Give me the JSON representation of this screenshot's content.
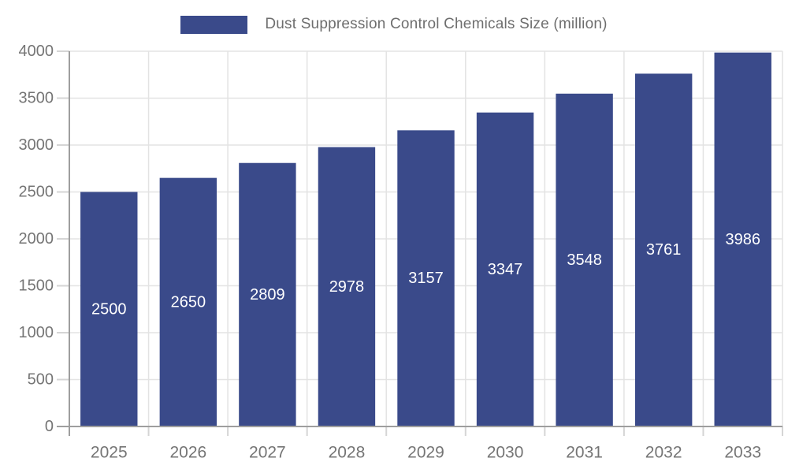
{
  "legend": {
    "label": "Dust Suppression Control Chemicals Size (million)"
  },
  "chart_data": {
    "type": "bar",
    "title": "Dust Suppression Control Chemicals Size (million)",
    "series_name": "Dust Suppression Control Chemicals Size (million)",
    "categories": [
      "2025",
      "2026",
      "2027",
      "2028",
      "2029",
      "2030",
      "2031",
      "2032",
      "2033"
    ],
    "values": [
      2500,
      2650,
      2809,
      2978,
      3157,
      3347,
      3548,
      3761,
      3986
    ],
    "xlabel": "",
    "ylabel": "",
    "ylim": [
      0,
      4000
    ],
    "ytick_step": 500,
    "ytick_labels": [
      "0",
      "500",
      "1000",
      "1500",
      "2000",
      "2500",
      "3000",
      "3500",
      "4000"
    ],
    "grid": true,
    "legend_position": "top",
    "value_labels_shown": true,
    "colors": {
      "bar": "#3A4A8A",
      "value_label": "#ffffff",
      "axis_line": "#9e9e9e",
      "grid_line": "#e3e3e3",
      "tick_mark": "#d5d5d5",
      "tick_label": "#757575",
      "legend_text": "#6e6e6e",
      "background": "#ffffff"
    }
  }
}
